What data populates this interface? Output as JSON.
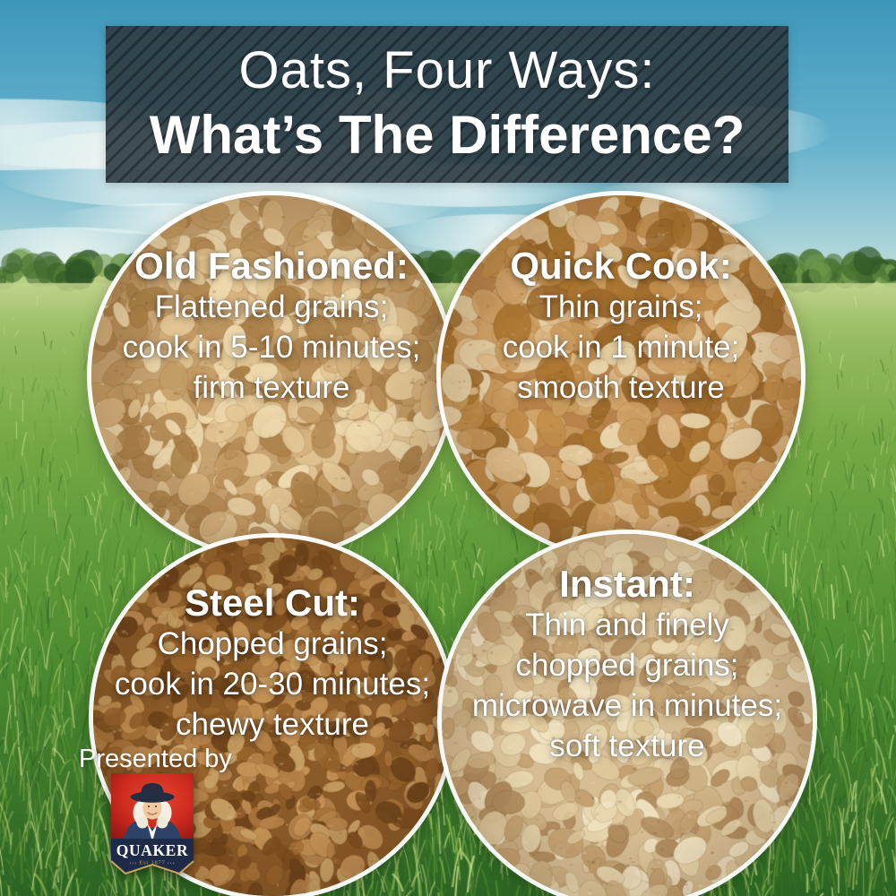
{
  "title": {
    "line1": "Oats, Four Ways:",
    "line2": "What’s The Difference?"
  },
  "oats": [
    {
      "name": "Old Fashioned",
      "heading": "Old Fashioned:",
      "lines": [
        "Flattened grains;",
        "cook in 5-10 minutes;",
        "firm texture"
      ],
      "texture": {
        "base": "#c7a271",
        "flakes": [
          "#e3c795",
          "#d4b07c",
          "#c39a63",
          "#b88e58",
          "#eed9ad",
          "#ab8149"
        ],
        "min_rx": 11,
        "max_rx": 24,
        "count": 540,
        "seed": 11
      }
    },
    {
      "name": "Quick Cook",
      "heading": "Quick Cook:",
      "lines": [
        "Thin grains;",
        "cook in 1 minute;",
        "smooth texture"
      ],
      "texture": {
        "base": "#b8834a",
        "flakes": [
          "#d2a468",
          "#c08c4a",
          "#a9742f",
          "#e0bd8c",
          "#c99a5d",
          "#9c6a2c",
          "#e8d2a8"
        ],
        "min_rx": 12,
        "max_rx": 28,
        "count": 500,
        "seed": 22
      }
    },
    {
      "name": "Steel Cut",
      "heading": "Steel Cut:",
      "lines": [
        "Chopped grains;",
        "cook in 20-30 minutes;",
        "chewy texture"
      ],
      "texture": {
        "base": "#8a5a28",
        "flakes": [
          "#a87339",
          "#96632c",
          "#7d4e1f",
          "#c49256",
          "#b5824a",
          "#6e431a",
          "#caa267"
        ],
        "min_rx": 8,
        "max_rx": 17,
        "count": 720,
        "seed": 33
      }
    },
    {
      "name": "Instant",
      "heading": "Instant:",
      "lines": [
        "Thin and finely",
        "chopped grains;",
        "microwave in minutes;",
        "soft texture"
      ],
      "texture": {
        "base": "#d6bd93",
        "flakes": [
          "#e8d7ae",
          "#dfc89c",
          "#cdb184",
          "#c2a070",
          "#f0e3c2",
          "#b08c5e"
        ],
        "min_rx": 9,
        "max_rx": 20,
        "count": 580,
        "seed": 44
      }
    }
  ],
  "footer": {
    "presented_by": "Presented by",
    "logo": {
      "brand": "QUAKER",
      "est_prefix": "›››",
      "established": "Est 1877",
      "est_suffix": "‹‹‹"
    }
  },
  "colors": {
    "banner_bg": "#2e3b41",
    "banner_bg_alpha": 0.9,
    "title_text": "#ffffff",
    "circle_border": "#ffffff",
    "body_text": "#ffffff",
    "quaker_red": "#cc2a1e",
    "quaker_red_bright": "#e8462e",
    "quaker_red_dark": "#8e1713",
    "quaker_navy": "#1d2b49",
    "quaker_gold": "#c9a45c"
  },
  "background": {
    "sky_top": "#3d97ba",
    "sky_mid": "#66b2cd",
    "sky_low": "#a9d3da",
    "horizon": "#cfe2d3",
    "cloud": "#f5faf6",
    "tree_dark": "#2f5626",
    "tree_mid": "#46702f",
    "tree_light": "#6f9a4a",
    "field_light": "#c2d48d",
    "field_mid_light": "#9fc167",
    "field_mid": "#74a844",
    "field_dark": "#4e8c31",
    "grass_dark": "#2c6423",
    "blade_colors": [
      "#dcea9e",
      "#c3dc82",
      "#9cc45f",
      "#74a83f",
      "#55912f",
      "#3b7425",
      "#2d6322"
    ],
    "seed": 7
  }
}
